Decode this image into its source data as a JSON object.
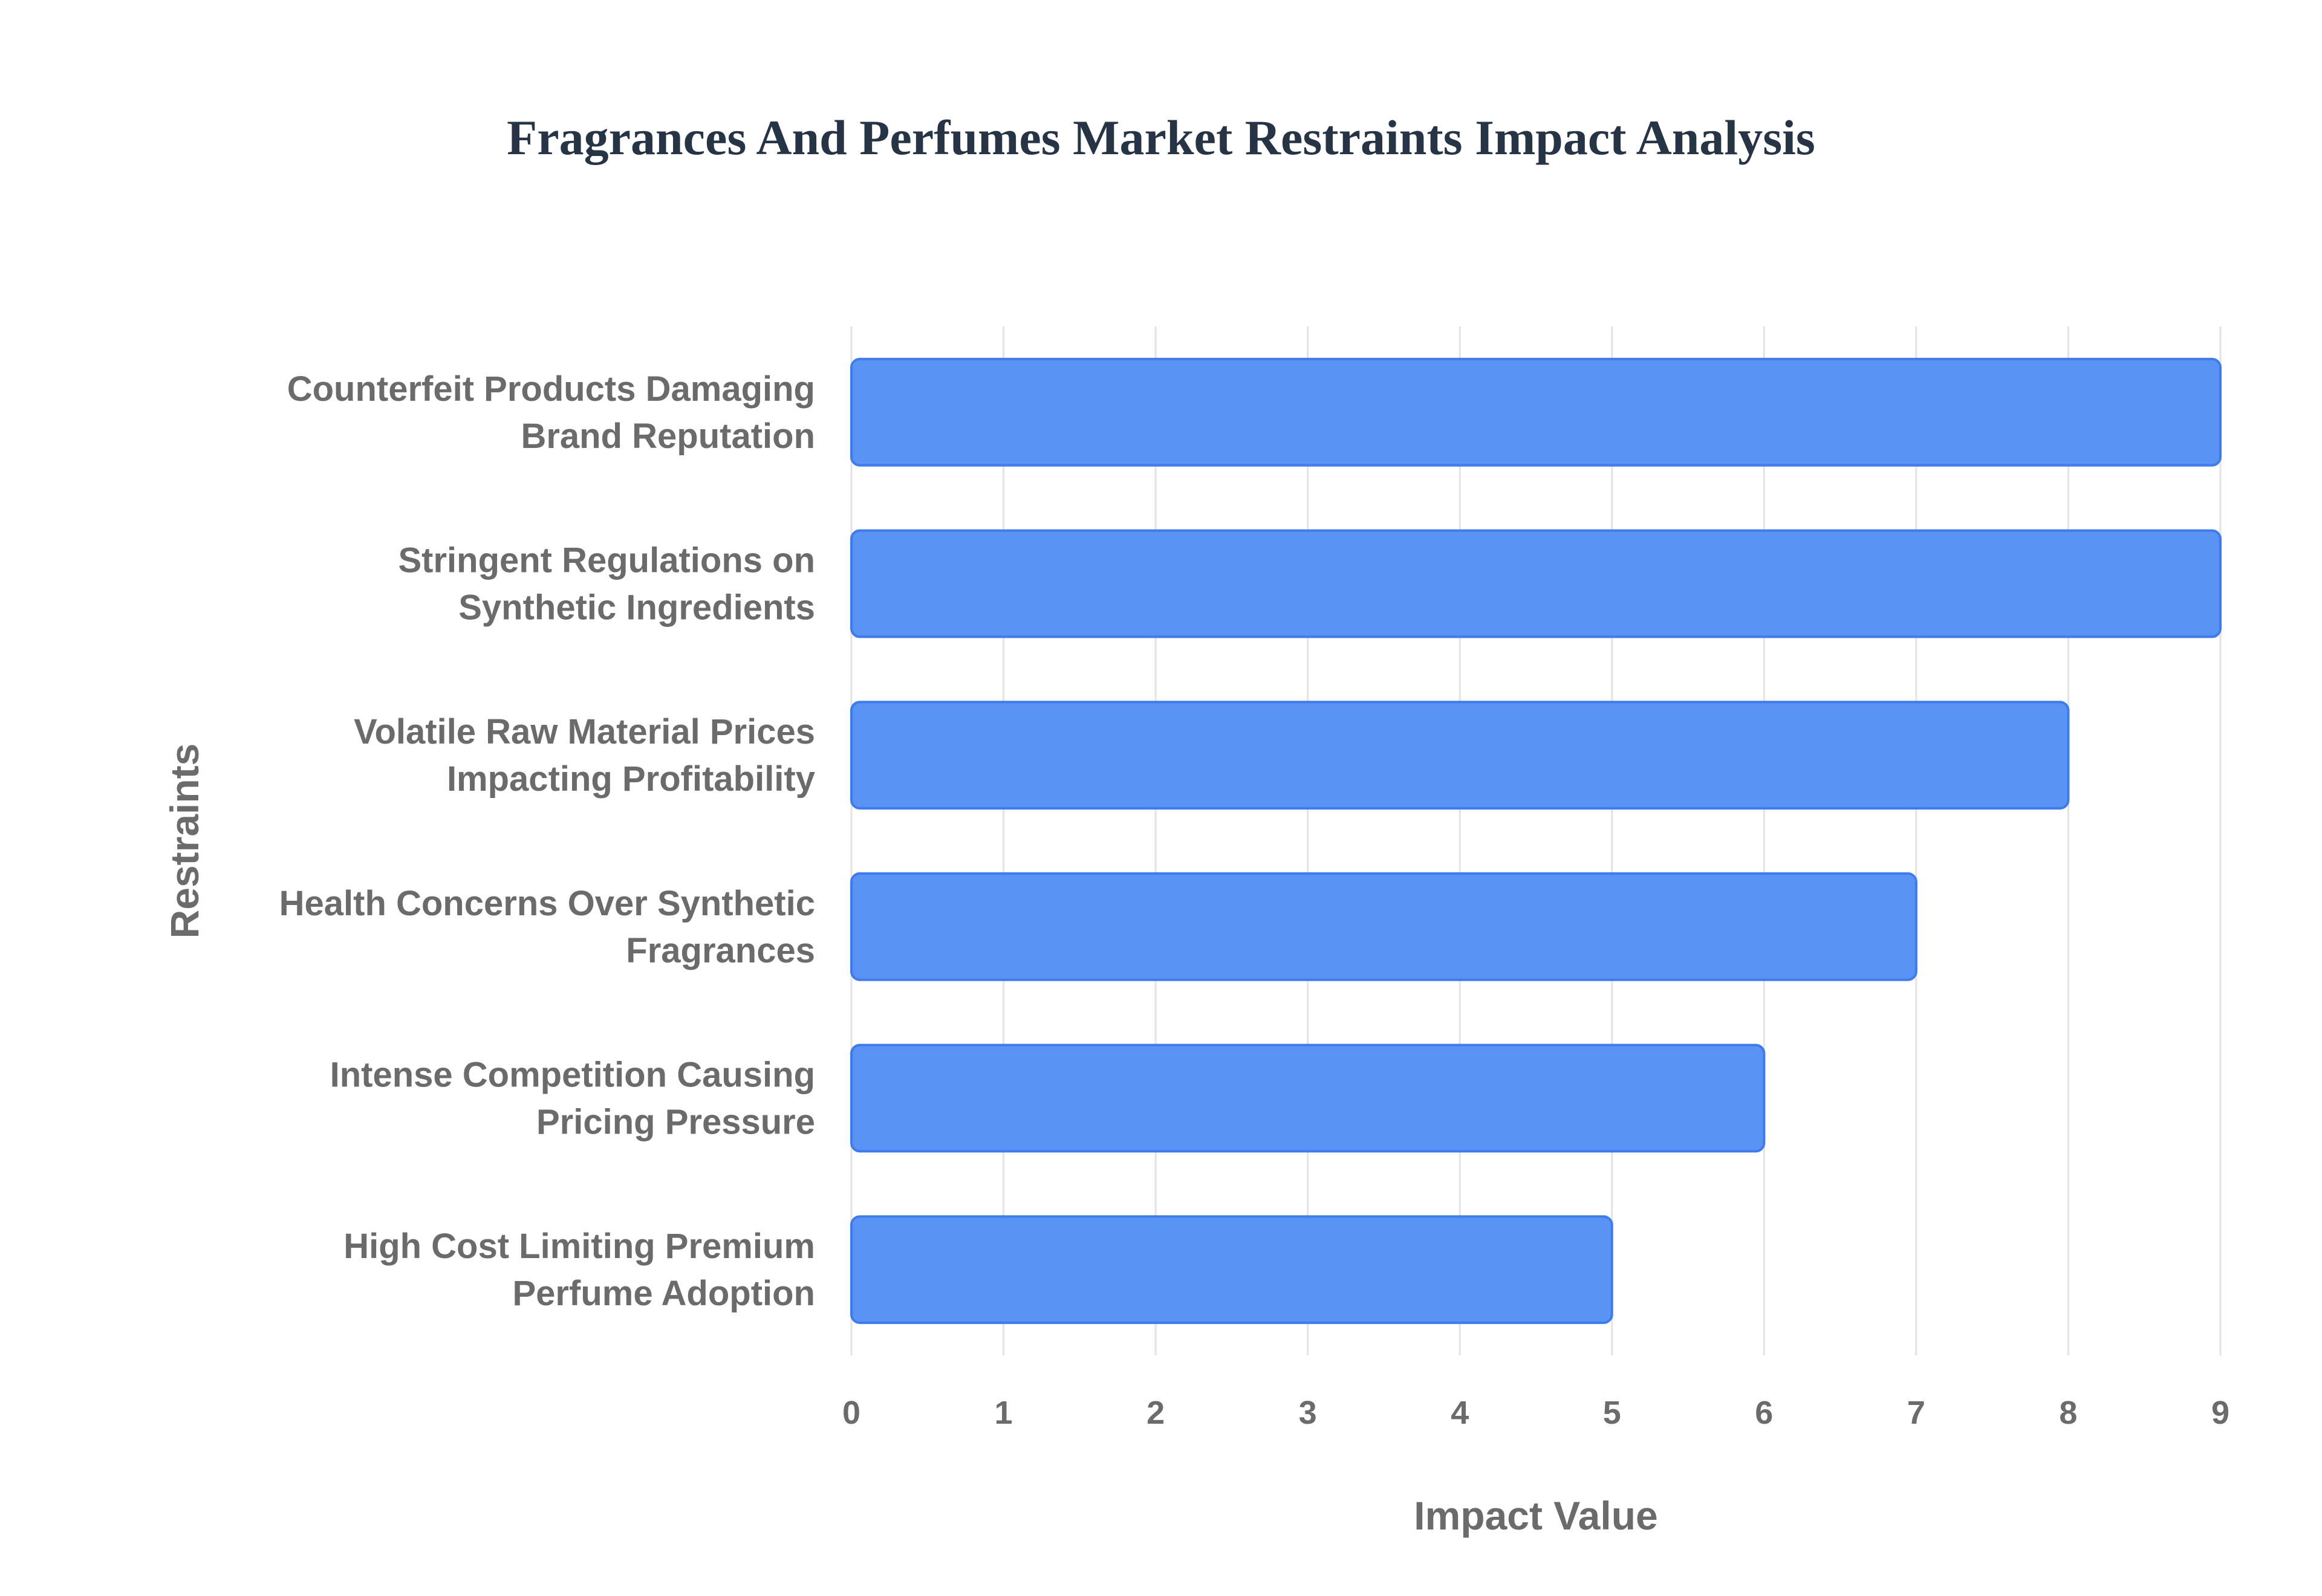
{
  "chart_data": {
    "type": "bar",
    "orientation": "horizontal",
    "title": "Fragrances And Perfumes Market Restraints Impact Analysis",
    "xlabel": "Impact Value",
    "ylabel": "Restraints",
    "categories": [
      [
        "Counterfeit Products Damaging",
        "Brand Reputation"
      ],
      [
        "Stringent Regulations on",
        "Synthetic Ingredients"
      ],
      [
        "Volatile Raw Material Prices",
        "Impacting Profitability"
      ],
      [
        "Health Concerns Over Synthetic",
        "Fragrances"
      ],
      [
        "Intense Competition Causing",
        "Pricing Pressure"
      ],
      [
        "High Cost Limiting Premium",
        "Perfume Adoption"
      ]
    ],
    "values": [
      9,
      9,
      8,
      7,
      6,
      5
    ],
    "xlim": [
      0,
      9
    ],
    "xticks": [
      "0",
      "1",
      "2",
      "3",
      "4",
      "5",
      "6",
      "7",
      "8",
      "9"
    ],
    "grid": true,
    "colors": {
      "bar_fill": "#5b93f5",
      "bar_stroke": "#3f7bea",
      "grid": "#e3e3e3",
      "text": "#6b6b6b",
      "title": "#263445"
    }
  }
}
